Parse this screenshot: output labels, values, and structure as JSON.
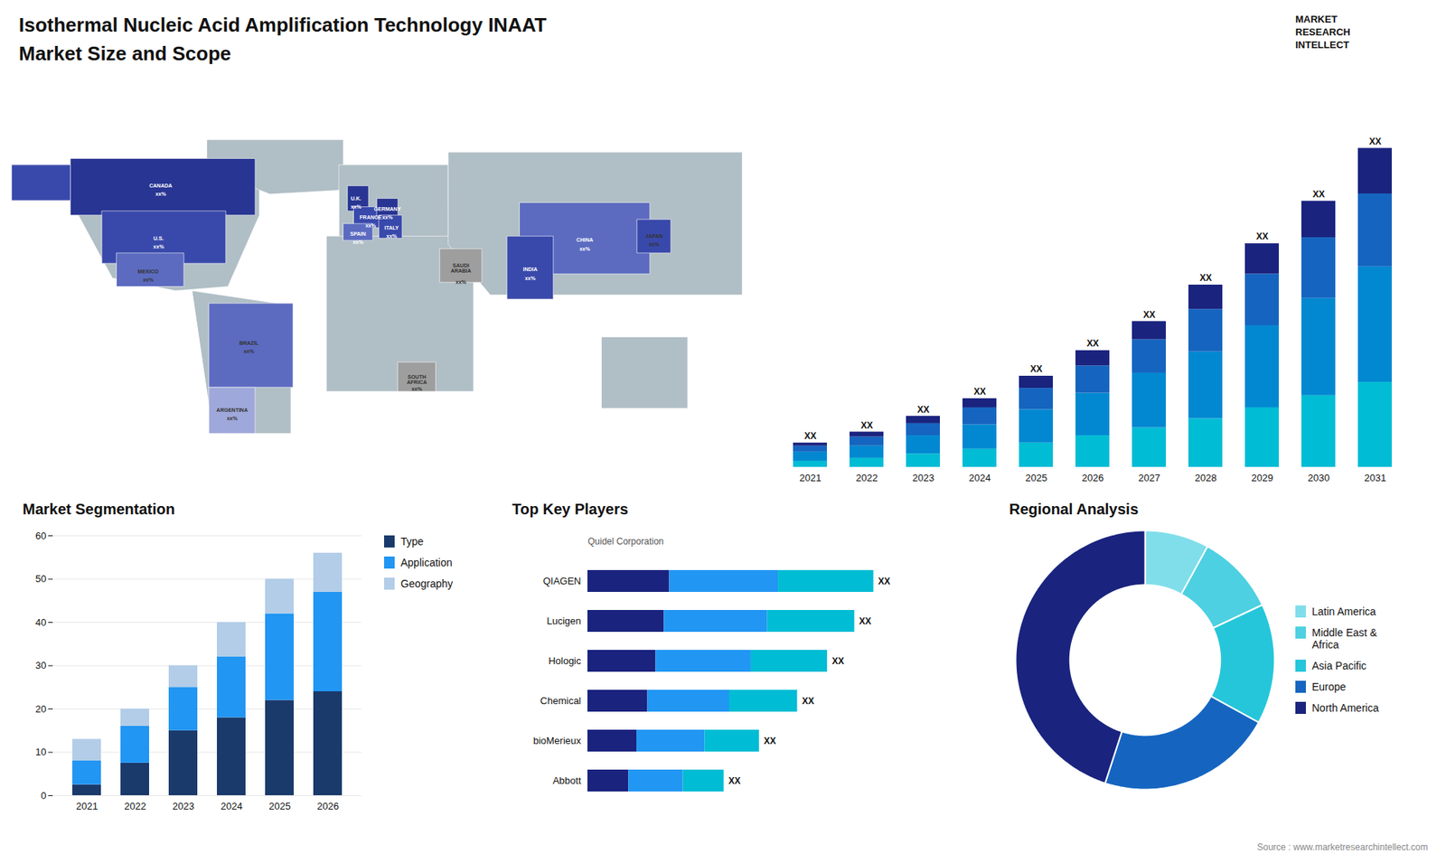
{
  "chart_data": [
    {
      "type": "map",
      "regions": [
        {
          "color": "#b0bec5",
          "points": [
            [
              -168,
              72
            ],
            [
              -50,
              72
            ],
            [
              -50,
              48
            ],
            [
              -65,
              14
            ],
            [
              -90,
              12
            ],
            [
              -120,
              18
            ],
            [
              -140,
              55
            ],
            [
              -168,
              72
            ]
          ]
        },
        {
          "color": "#b0bec5",
          "points": [
            [
              -75,
              84
            ],
            [
              -10,
              84
            ],
            [
              -10,
              60
            ],
            [
              -45,
              58
            ],
            [
              -65,
              66
            ],
            [
              -75,
              72
            ]
          ]
        },
        {
          "color": "#b0bec5",
          "points": [
            [
              -82,
              12
            ],
            [
              -35,
              5
            ],
            [
              -35,
              -56
            ],
            [
              -72,
              -56
            ],
            [
              -82,
              12
            ]
          ]
        },
        {
          "color": "#b0bec5",
          "points": [
            [
              -12,
              72
            ],
            [
              40,
              72
            ],
            [
              40,
              34
            ],
            [
              -12,
              34
            ]
          ]
        },
        {
          "color": "#b0bec5",
          "points": [
            [
              -18,
              38
            ],
            [
              52,
              38
            ],
            [
              52,
              -36
            ],
            [
              -18,
              -36
            ]
          ]
        },
        {
          "color": "#b0bec5",
          "points": [
            [
              40,
              78
            ],
            [
              180,
              78
            ],
            [
              180,
              10
            ],
            [
              60,
              10
            ],
            [
              40,
              34
            ]
          ]
        },
        {
          "color": "#b0bec5",
          "points": [
            [
              113,
              -10
            ],
            [
              154,
              -10
            ],
            [
              154,
              -44
            ],
            [
              113,
              -44
            ]
          ]
        },
        {
          "color": "#283593",
          "points": [
            [
              -140,
              75
            ],
            [
              -52,
              75
            ],
            [
              -52,
              48
            ],
            [
              -140,
              48
            ]
          ]
        },
        {
          "color": "#3949ab",
          "points": [
            [
              -125,
              50
            ],
            [
              -66,
              50
            ],
            [
              -66,
              25
            ],
            [
              -125,
              25
            ]
          ]
        },
        {
          "color": "#3949ab",
          "points": [
            [
              -168,
              72
            ],
            [
              -140,
              72
            ],
            [
              -140,
              55
            ],
            [
              -168,
              55
            ]
          ]
        },
        {
          "color": "#5c6bc0",
          "points": [
            [
              -118,
              30
            ],
            [
              -86,
              30
            ],
            [
              -86,
              14
            ],
            [
              -118,
              14
            ]
          ]
        },
        {
          "color": "#5c6bc0",
          "points": [
            [
              -74,
              6
            ],
            [
              -34,
              6
            ],
            [
              -34,
              -34
            ],
            [
              -74,
              -34
            ]
          ]
        },
        {
          "color": "#9fa8da",
          "points": [
            [
              -74,
              -34
            ],
            [
              -52,
              -34
            ],
            [
              -52,
              -56
            ],
            [
              -74,
              -56
            ]
          ]
        },
        {
          "color": "#283593",
          "points": [
            [
              -8,
              62
            ],
            [
              2,
              62
            ],
            [
              2,
              50
            ],
            [
              -8,
              50
            ]
          ]
        },
        {
          "color": "#3949ab",
          "points": [
            [
              -5,
              52
            ],
            [
              10,
              52
            ],
            [
              10,
              42
            ],
            [
              -5,
              42
            ]
          ]
        },
        {
          "color": "#5c6bc0",
          "points": [
            [
              -10,
              44
            ],
            [
              4,
              44
            ],
            [
              4,
              36
            ],
            [
              -10,
              36
            ]
          ]
        },
        {
          "color": "#283593",
          "points": [
            [
              6,
              56
            ],
            [
              16,
              56
            ],
            [
              16,
              47
            ],
            [
              6,
              47
            ]
          ]
        },
        {
          "color": "#3949ab",
          "points": [
            [
              7,
              48
            ],
            [
              18,
              48
            ],
            [
              18,
              37
            ],
            [
              7,
              37
            ]
          ]
        },
        {
          "color": "#9e9e9e",
          "points": [
            [
              36,
              32
            ],
            [
              56,
              32
            ],
            [
              56,
              16
            ],
            [
              36,
              16
            ]
          ]
        },
        {
          "color": "#9e9e9e",
          "points": [
            [
              16,
              -22
            ],
            [
              34,
              -22
            ],
            [
              34,
              -36
            ],
            [
              16,
              -36
            ]
          ]
        },
        {
          "color": "#5c6bc0",
          "points": [
            [
              74,
              54
            ],
            [
              136,
              54
            ],
            [
              136,
              20
            ],
            [
              74,
              20
            ]
          ]
        },
        {
          "color": "#3949ab",
          "points": [
            [
              68,
              38
            ],
            [
              90,
              38
            ],
            [
              90,
              8
            ],
            [
              68,
              8
            ]
          ]
        },
        {
          "color": "#3949ab",
          "points": [
            [
              130,
              46
            ],
            [
              146,
              46
            ],
            [
              146,
              30
            ],
            [
              130,
              30
            ]
          ]
        }
      ],
      "labels": [
        {
          "text": "CANADA",
          "x": -97,
          "y": 63,
          "color": "white"
        },
        {
          "text": "xx%",
          "x": -97,
          "y": 59,
          "color": "white"
        },
        {
          "text": "U.S.",
          "x": -98,
          "y": 38,
          "color": "white"
        },
        {
          "text": "xx%",
          "x": -98,
          "y": 34,
          "color": "white"
        },
        {
          "text": "MEXICO",
          "x": -103,
          "y": 22,
          "color": "#333333"
        },
        {
          "text": "xx%",
          "x": -103,
          "y": 18,
          "color": "#333333"
        },
        {
          "text": "BRAZIL",
          "x": -55,
          "y": -12,
          "color": "#333333"
        },
        {
          "text": "xx%",
          "x": -55,
          "y": -16,
          "color": "#333333"
        },
        {
          "text": "ARGENTINA",
          "x": -63,
          "y": -44,
          "color": "#333333"
        },
        {
          "text": "xx%",
          "x": -63,
          "y": -48,
          "color": "#333333"
        },
        {
          "text": "U.K.",
          "x": -4,
          "y": 57,
          "color": "white"
        },
        {
          "text": "xx%",
          "x": -4,
          "y": 53,
          "color": "white"
        },
        {
          "text": "FRANCE",
          "x": 3,
          "y": 48,
          "color": "white"
        },
        {
          "text": "xx%",
          "x": 3,
          "y": 44,
          "color": "white"
        },
        {
          "text": "SPAIN",
          "x": -3,
          "y": 40,
          "color": "white"
        },
        {
          "text": "xx%",
          "x": -3,
          "y": 36,
          "color": "white"
        },
        {
          "text": "GERMANY",
          "x": 11,
          "y": 52,
          "color": "white"
        },
        {
          "text": "xx%",
          "x": 11,
          "y": 48,
          "color": "white"
        },
        {
          "text": "ITALY",
          "x": 13,
          "y": 43,
          "color": "white"
        },
        {
          "text": "xx%",
          "x": 13,
          "y": 39,
          "color": "white"
        },
        {
          "text": "SAUDI\nARABIA",
          "x": 46,
          "y": 25,
          "color": "#333333"
        },
        {
          "text": "xx%",
          "x": 46,
          "y": 17,
          "color": "#333333"
        },
        {
          "text": "SOUTH\nAFRICA",
          "x": 25,
          "y": -28,
          "color": "#333333"
        },
        {
          "text": "xx%",
          "x": 25,
          "y": -34,
          "color": "#333333"
        },
        {
          "text": "CHINA",
          "x": 105,
          "y": 37,
          "color": "white"
        },
        {
          "text": "xx%",
          "x": 105,
          "y": 33,
          "color": "white"
        },
        {
          "text": "INDIA",
          "x": 79,
          "y": 23,
          "color": "white"
        },
        {
          "text": "xx%",
          "x": 79,
          "y": 19,
          "color": "white"
        },
        {
          "text": "JAPAN",
          "x": 138,
          "y": 39,
          "color": "#333333"
        },
        {
          "text": "xx%",
          "x": 138,
          "y": 35,
          "color": "#333333"
        }
      ]
    },
    {
      "type": "bar",
      "title": "Isothermal Nucleic Acid Amplification Technology INAAT",
      "subtitle": "Market Size and Scope",
      "annotations": [
        "MARKET",
        "RESEARCH",
        "INTELLECT"
      ],
      "categories": [
        "2021",
        "2022",
        "2023",
        "2024",
        "2025",
        "2026",
        "2027",
        "2028",
        "2029",
        "2030",
        "2031"
      ],
      "series": [
        {
          "color": "#00bcd4",
          "values": [
            1.0,
            1.5,
            2.2,
            3.0,
            4.0,
            5.2,
            6.5,
            8.0,
            9.8,
            11.8,
            14.0
          ]
        },
        {
          "color": "#0288d1",
          "values": [
            1.5,
            2.0,
            3.0,
            4.0,
            5.5,
            7.0,
            9.0,
            11.0,
            13.5,
            16.0,
            19.0
          ]
        },
        {
          "color": "#1565c0",
          "values": [
            1.0,
            1.5,
            2.0,
            2.8,
            3.5,
            4.5,
            5.5,
            7.0,
            8.5,
            10.0,
            12.0
          ]
        },
        {
          "color": "#1a237e",
          "values": [
            0.5,
            0.8,
            1.2,
            1.5,
            2.0,
            2.5,
            3.0,
            4.0,
            5.0,
            6.0,
            7.5
          ]
        }
      ],
      "total_labels": [
        "XX",
        "XX",
        "XX",
        "XX",
        "XX",
        "XX",
        "XX",
        "XX",
        "XX",
        "XX",
        "XX"
      ],
      "stacked": true,
      "ylim": [
        0,
        59.5
      ],
      "tick_labels": "x"
    },
    {
      "type": "bar",
      "title": "Market Segmentation",
      "categories": [
        "2021",
        "2022",
        "2023",
        "2024",
        "2025",
        "2026"
      ],
      "series": [
        {
          "name": "Type",
          "color": "#1a3a6b",
          "values": [
            2.5,
            7.5,
            15,
            18,
            22,
            24
          ]
        },
        {
          "name": "Application",
          "color": "#2196f3",
          "values": [
            5.5,
            8.5,
            10,
            14,
            20,
            23
          ]
        },
        {
          "name": "Geography",
          "color": "#b3cde8",
          "values": [
            5.0,
            4.0,
            5,
            8,
            8,
            9
          ]
        }
      ],
      "stacked": true,
      "ylim": [
        0,
        60
      ],
      "yticks": [
        0,
        10,
        20,
        30,
        40,
        50,
        60
      ],
      "grid": true,
      "legend": "right"
    },
    {
      "type": "bar",
      "title": "Top Key Players",
      "orientation": "horizontal",
      "annotations": [
        "Quidel Corporation"
      ],
      "categories": [
        "QIAGEN",
        "Lucigen",
        "Hologic",
        "Chemical",
        "bioMerieux",
        "Abbott"
      ],
      "series": [
        {
          "color": "#1a237e",
          "values": [
            3.0,
            2.8,
            2.5,
            2.2,
            1.8,
            1.5
          ]
        },
        {
          "color": "#2196f3",
          "values": [
            4.0,
            3.8,
            3.5,
            3.0,
            2.5,
            2.0
          ]
        },
        {
          "color": "#00bcd4",
          "values": [
            3.5,
            3.2,
            2.8,
            2.5,
            2.0,
            1.5
          ]
        }
      ],
      "total_labels": [
        "XX",
        "XX",
        "XX",
        "XX",
        "XX",
        "XX"
      ],
      "stacked": true,
      "xlim": [
        0,
        13
      ],
      "tick_labels": "y"
    },
    {
      "type": "donut",
      "title": "Regional Analysis",
      "categories": [
        "Latin America",
        "Middle East &\nAfrica",
        "Asia Pacific",
        "Europe",
        "North America"
      ],
      "values": [
        8,
        10,
        15,
        22,
        45
      ],
      "colors": [
        "#80deea",
        "#4dd0e1",
        "#26c6da",
        "#1565c0",
        "#1a237e"
      ],
      "legend": "right",
      "source": "Source : www.marketresearchintellect.com"
    }
  ]
}
